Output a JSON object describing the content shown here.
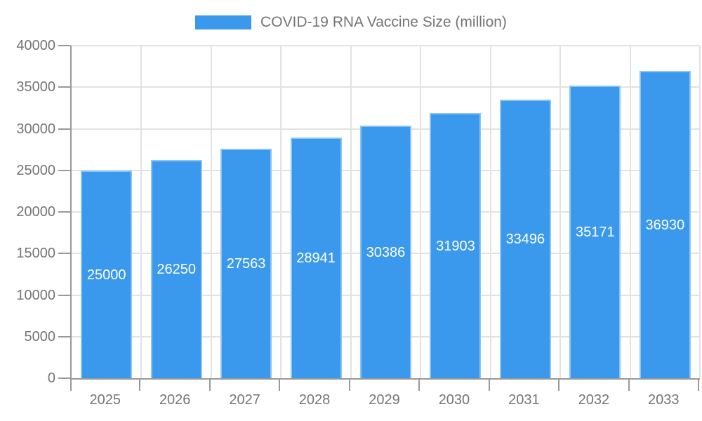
{
  "chart_data": {
    "type": "bar",
    "title": "COVID-19 RNA Vaccine Size (million)",
    "legend": {
      "position": "top",
      "label": "COVID-19 RNA Vaccine Size (million)"
    },
    "categories": [
      "2025",
      "2026",
      "2027",
      "2028",
      "2029",
      "2030",
      "2031",
      "2032",
      "2033"
    ],
    "series": [
      {
        "name": "COVID-19 RNA Vaccine Size (million)",
        "values": [
          25000,
          26250,
          27563,
          28941,
          30386,
          31903,
          33496,
          35171,
          36930
        ]
      }
    ],
    "xlabel": "",
    "ylabel": "",
    "ylim": [
      0,
      40000
    ],
    "yticks": [
      0,
      5000,
      10000,
      15000,
      20000,
      25000,
      30000,
      35000,
      40000
    ],
    "grid": true,
    "bar_value_labels_visible": true,
    "colors": {
      "bar": "#3A99EC",
      "bar_border": "#8CC5F3",
      "bar_label": "#FFFFFF",
      "axis": "#999999",
      "grid": "#E2E2E2",
      "text": "#757575"
    }
  }
}
